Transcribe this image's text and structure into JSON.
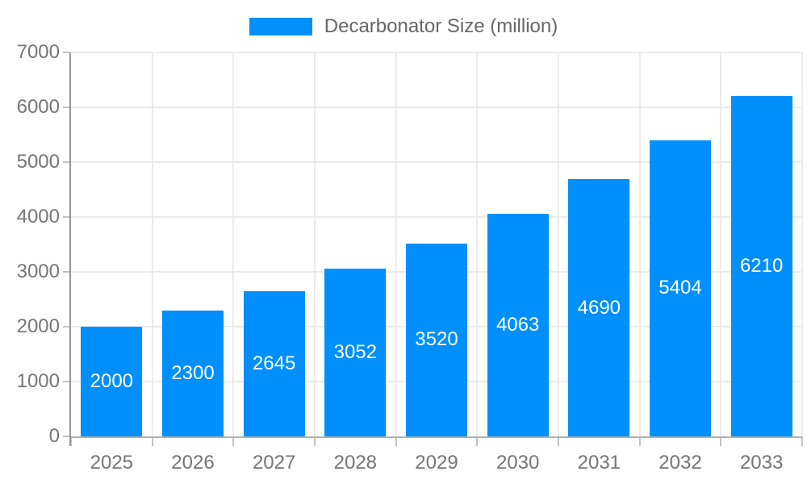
{
  "chart_data": {
    "type": "bar",
    "legend": "Decarbonator Size (million)",
    "legend_position": "top",
    "categories": [
      "2025",
      "2026",
      "2027",
      "2028",
      "2029",
      "2030",
      "2031",
      "2032",
      "2033"
    ],
    "values": [
      2000,
      2300,
      2645,
      3052,
      3520,
      4063,
      4690,
      5404,
      6210
    ],
    "series": [
      {
        "name": "Decarbonator Size (million)",
        "values": [
          2000,
          2300,
          2645,
          3052,
          3520,
          4063,
          4690,
          5404,
          6210
        ]
      }
    ],
    "title": "",
    "xlabel": "",
    "ylabel": "",
    "ylim": [
      0,
      7000
    ],
    "yticks": [
      0,
      1000,
      2000,
      3000,
      4000,
      5000,
      6000,
      7000
    ],
    "grid": true,
    "data_labels": "inside-center",
    "colors": {
      "bar": "#008FFB",
      "bar_label_text": "#ffffff",
      "axis_text": "#757575",
      "legend_text": "#666666",
      "gridline": "#ebebeb",
      "background": "#ffffff"
    }
  }
}
